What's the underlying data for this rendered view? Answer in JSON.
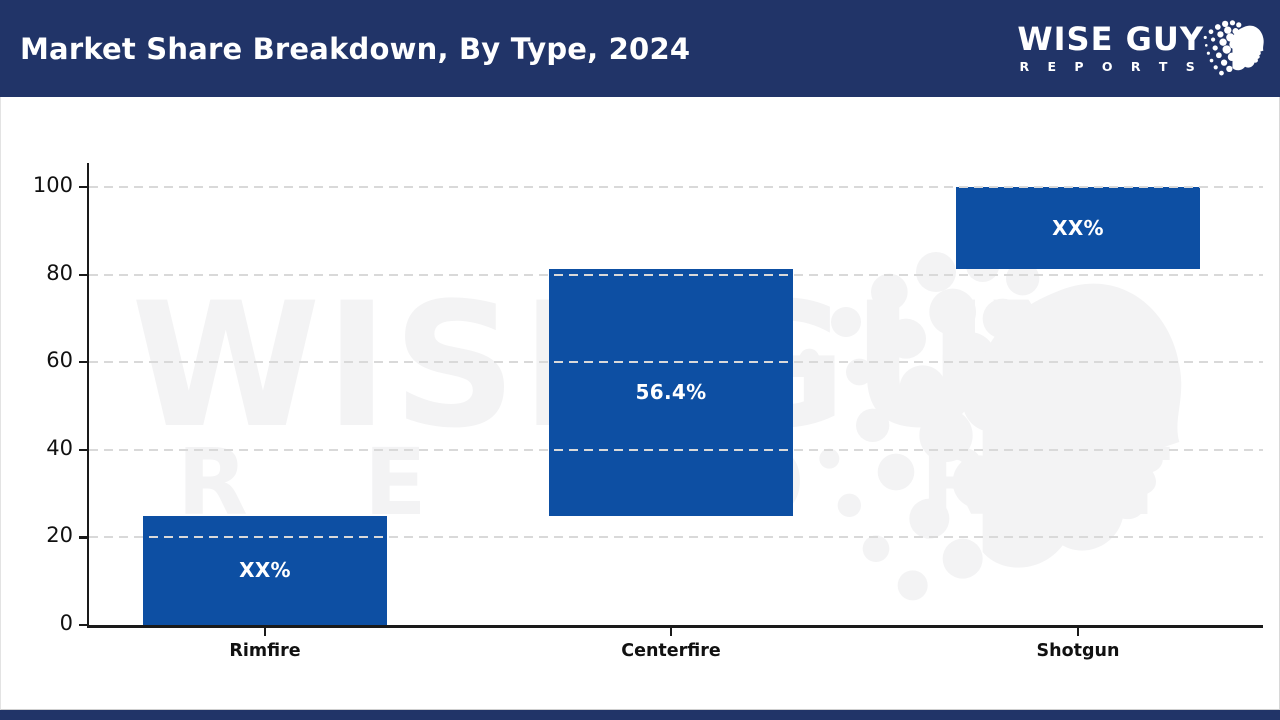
{
  "header": {
    "title": "Market Share Breakdown, By Type, 2024",
    "logo": {
      "line1": "WISE GUY",
      "line2": "R E P O R T S"
    }
  },
  "watermark": {
    "line1": "WISE GUY",
    "line2": "R E P O R T S"
  },
  "colors": {
    "header_bg": "#213468",
    "bar": "#0d4fa3",
    "grid": "#d9d9d9",
    "axis": "#1a1a1a",
    "watermark": "#f3f3f4",
    "bar_label_text": "#ffffff",
    "tick_label_text": "#111111"
  },
  "chart_data": {
    "type": "bar",
    "subtype": "waterfall",
    "title": "Market Share Breakdown, By Type, 2024",
    "categories": [
      "Rimfire",
      "Centerfire",
      "Shotgun"
    ],
    "segments": [
      {
        "category": "Rimfire",
        "start": 0,
        "end": 25,
        "label": "XX%"
      },
      {
        "category": "Centerfire",
        "start": 25,
        "end": 81.4,
        "label": "56.4%"
      },
      {
        "category": "Shotgun",
        "start": 81.4,
        "end": 100,
        "label": "XX%"
      }
    ],
    "y_ticks": [
      0,
      20,
      40,
      60,
      80,
      100
    ],
    "ylim": [
      0,
      105.5
    ],
    "grid": "horizontal-dashed",
    "legend": "none",
    "xlabel": "",
    "ylabel": ""
  }
}
